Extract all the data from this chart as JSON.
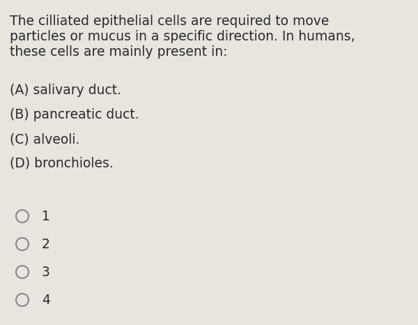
{
  "background_color": "#e8e4de",
  "question_text_lines": [
    "The cilliated epithelial cells are required to move",
    "particles or mucus in a specific direction. In humans,",
    "these cells are mainly present in:"
  ],
  "options": [
    "(A) salivary duct.",
    "(B) pancreatic duct.",
    "(C) alveoli.",
    "(D) bronchioles."
  ],
  "answer_labels": [
    "1",
    "2",
    "3",
    "4"
  ],
  "text_color": "#2a2a2a",
  "circle_color": "#888888",
  "question_fontsize": 13.5,
  "option_fontsize": 13.5,
  "answer_fontsize": 13.5,
  "fig_width": 6.0,
  "fig_height": 4.66,
  "dpi": 100
}
